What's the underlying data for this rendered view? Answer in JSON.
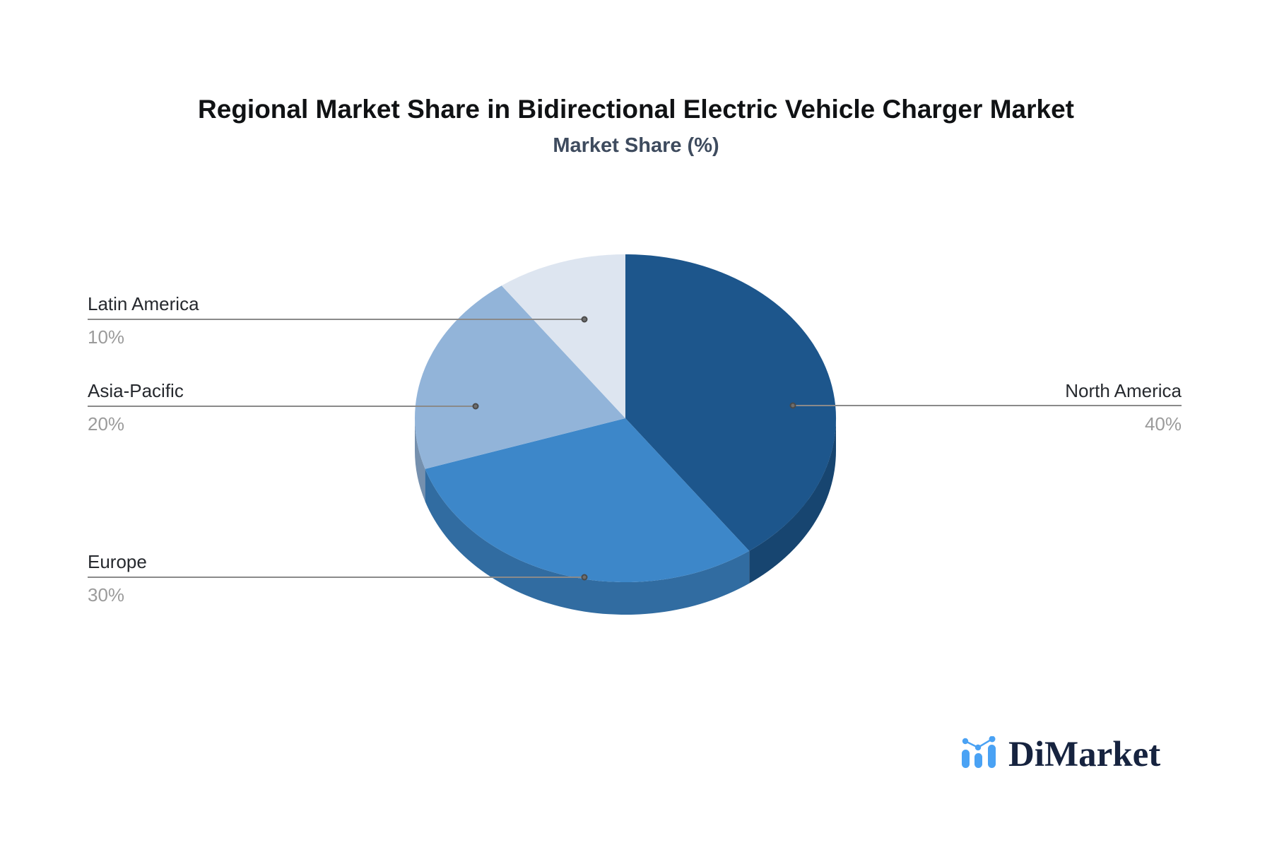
{
  "chart_data": {
    "type": "pie",
    "style": "3d-pie",
    "title": "Regional Market Share in Bidirectional Electric Vehicle Charger Market",
    "subtitle": "Market Share (%)",
    "unit": "%",
    "start_angle_deg": 0,
    "direction": "clockwise",
    "legend_position": "callout-labels",
    "slices": [
      {
        "label": "North America",
        "value": 40,
        "display": "40%",
        "color": "#1d568c",
        "callout_side": "right"
      },
      {
        "label": "Europe",
        "value": 30,
        "display": "30%",
        "color": "#3d87c9",
        "callout_side": "left"
      },
      {
        "label": "Asia-Pacific",
        "value": 20,
        "display": "20%",
        "color": "#92b4d9",
        "callout_side": "left"
      },
      {
        "label": "Latin America",
        "value": 10,
        "display": "10%",
        "color": "#dde5f0",
        "callout_side": "left"
      }
    ]
  },
  "branding": {
    "name": "DiMarket",
    "icon": "bar-line-chart-icon",
    "icon_color": "#4aa2f4",
    "text_color": "#16233f"
  }
}
